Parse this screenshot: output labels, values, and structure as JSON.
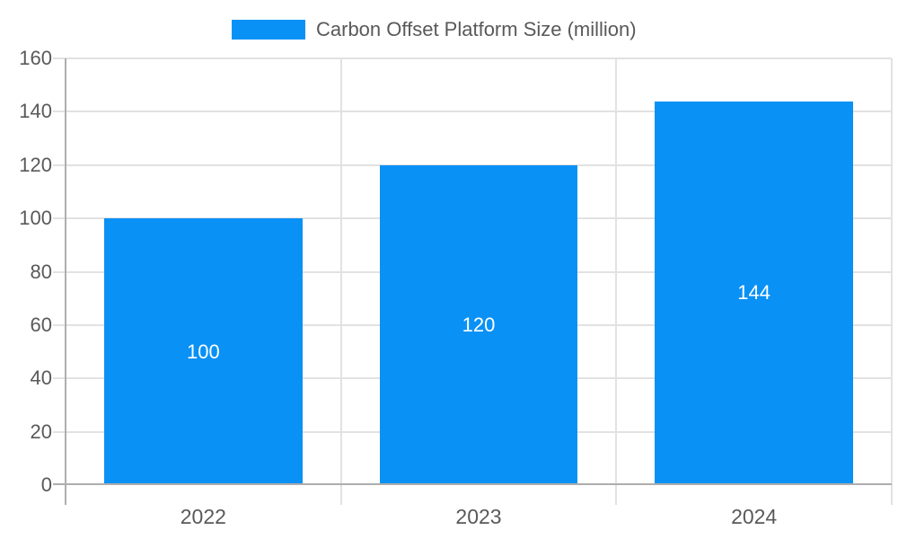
{
  "chart_data": {
    "type": "bar",
    "title": "Carbon Offset Platform Size (million)",
    "categories": [
      "2022",
      "2023",
      "2024"
    ],
    "values": [
      100,
      120,
      144
    ],
    "value_labels": [
      "100",
      "120",
      "144"
    ],
    "xlabel": "",
    "ylabel": "",
    "ylim": [
      0,
      160
    ],
    "yticks": [
      0,
      20,
      40,
      60,
      80,
      100,
      120,
      140,
      160
    ],
    "grid": true,
    "legend_position": "top-center"
  },
  "colors": {
    "bar": "#0a91f5",
    "text": "#595959",
    "gridline": "#e2e2e2",
    "axis_line": "#aeaeae",
    "value_label": "#ffffff",
    "background": "#ffffff"
  }
}
